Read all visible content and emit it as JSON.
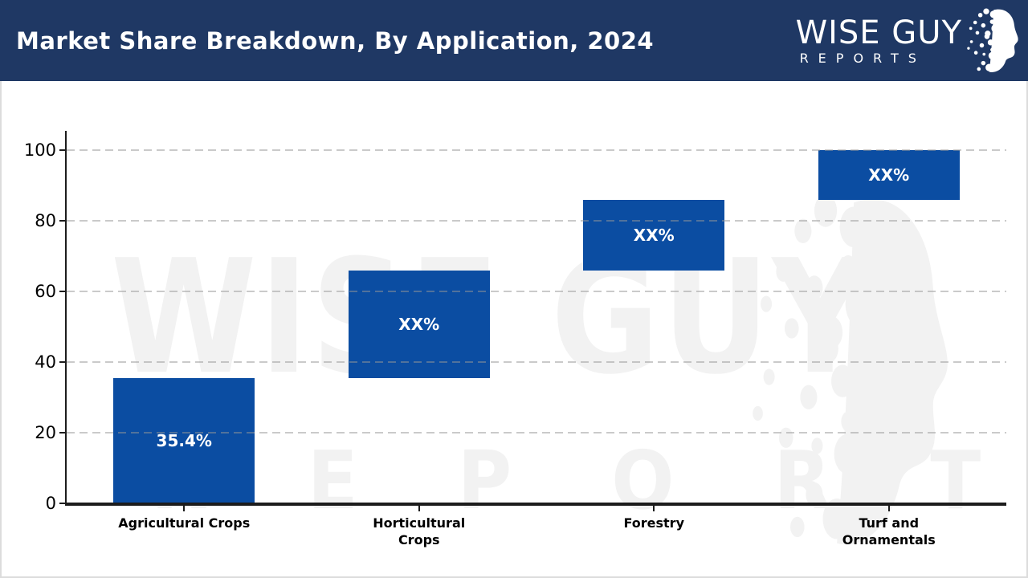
{
  "header": {
    "title": "Market Share Breakdown, By Application, 2024",
    "logo": {
      "wordmark": "WISE GUY",
      "subtext": "REPORTS"
    }
  },
  "watermark": {
    "line1": "WISE GUY",
    "line2": "R E P O R T S"
  },
  "colors": {
    "header_bg": "#1f3864",
    "bar": "#0b4da2",
    "watermark": "#f2f2f2",
    "axis": "#1c1c1c",
    "bar_label": "#ffffff"
  },
  "chart_data": {
    "type": "bar",
    "variant": "stacked-waterfall",
    "title": "Market Share Breakdown, By Application, 2024",
    "xlabel": "",
    "ylabel": "",
    "categories": [
      "Agricultural Crops",
      "Horticultural\nCrops",
      "Forestry",
      "Turf and\nOrnamentals"
    ],
    "segments": [
      {
        "category": "Agricultural Crops",
        "start": 0,
        "end": 35.4,
        "value": 35.4,
        "label": "35.4%"
      },
      {
        "category": "Horticultural Crops",
        "start": 35.4,
        "end": 65.8,
        "value": 30.4,
        "label": "XX%"
      },
      {
        "category": "Forestry",
        "start": 65.8,
        "end": 85.9,
        "value": 20.1,
        "label": "XX%"
      },
      {
        "category": "Turf and Ornamentals",
        "start": 85.9,
        "end": 100,
        "value": 14.1,
        "label": "XX%"
      }
    ],
    "ylim": [
      0,
      100
    ],
    "yticks": [
      0,
      20,
      40,
      60,
      80,
      100
    ],
    "grid": {
      "horizontal": true,
      "style": "dashed",
      "drawn_over_bars": true
    },
    "legend": null,
    "bar_color": "#0b4da2"
  }
}
